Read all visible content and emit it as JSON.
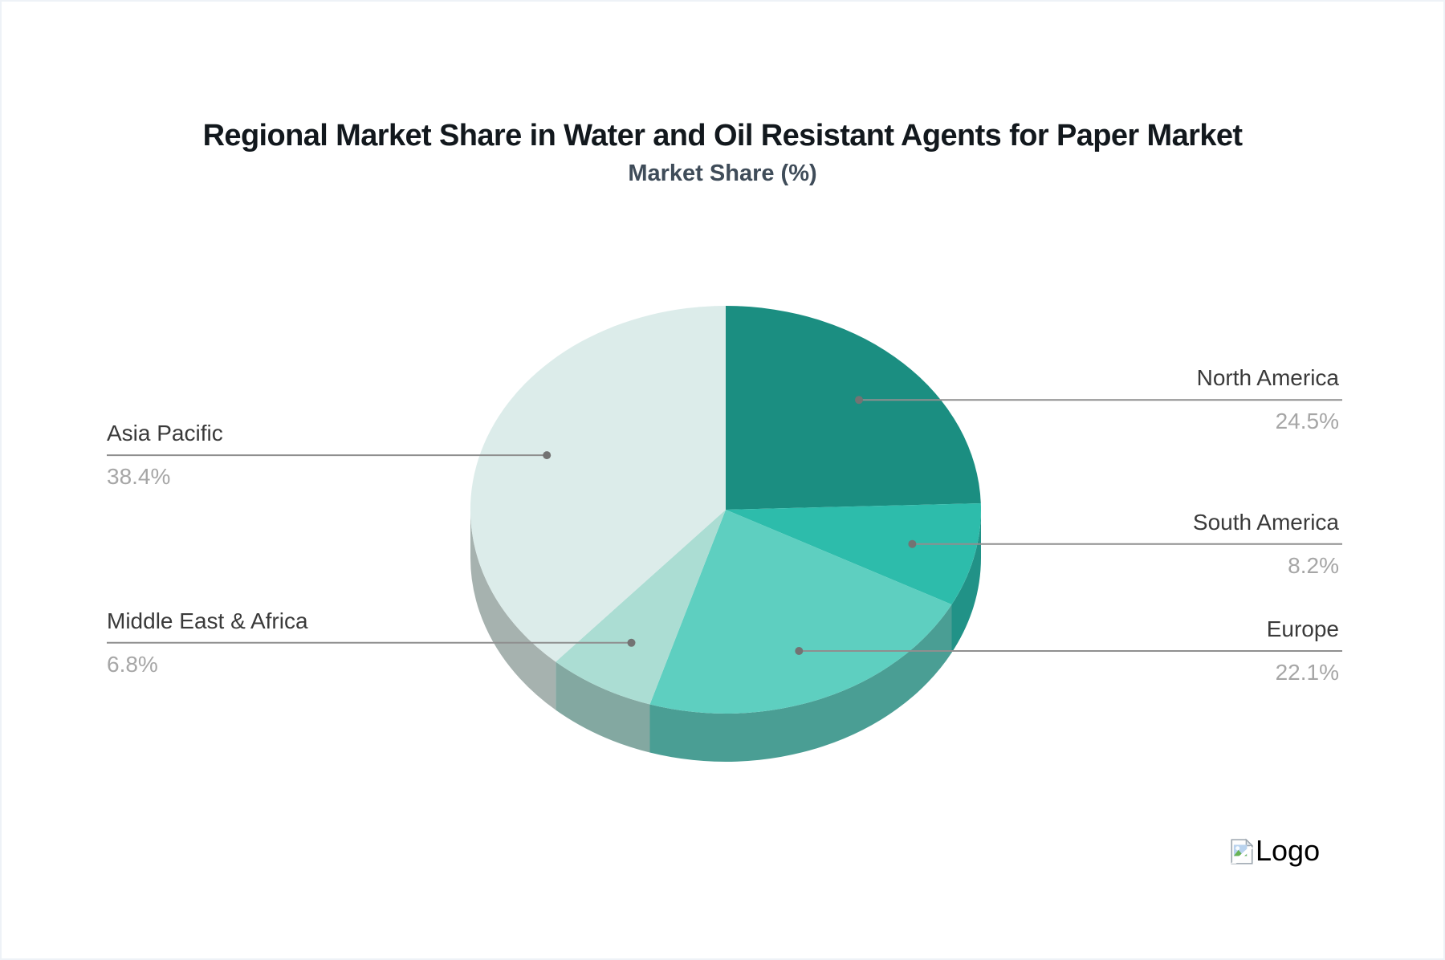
{
  "chart_data": {
    "type": "pie",
    "title": "Regional Market Share in Water and Oil Resistant Agents for Paper Market",
    "subtitle": "Market Share (%)",
    "unit": "%",
    "effect_3d": true,
    "direction": "clockwise",
    "start_angle_deg": 0,
    "legend": "none (labels with leader lines)",
    "slices": [
      {
        "label": "North America",
        "value": 24.5,
        "color": "#1b8e81",
        "side_color": "#177c70",
        "label_side": "right"
      },
      {
        "label": "South America",
        "value": 8.2,
        "color": "#2dbcab",
        "side_color": "#219287",
        "label_side": "right"
      },
      {
        "label": "Europe",
        "value": 22.1,
        "color": "#5ecfc0",
        "side_color": "#4a9e94",
        "label_side": "right"
      },
      {
        "label": "Middle East & Africa",
        "value": 6.8,
        "color": "#abddd3",
        "side_color": "#83a8a1",
        "label_side": "left"
      },
      {
        "label": "Asia Pacific",
        "value": 38.4,
        "color": "#dcecea",
        "side_color": "#a6b2af",
        "label_side": "left"
      }
    ],
    "label_line_color": "#8f8f8f",
    "label_dot_color": "#737373",
    "label_text_color": "#3a3a3a",
    "pct_text_color": "#a6a6a6"
  },
  "theme": {
    "background": "#ffffff",
    "page_border_color": "#eef2f7",
    "title_color": "#12181d",
    "subtitle_color": "#3f4c59"
  },
  "footer": {
    "logo_alt": "Logo"
  }
}
